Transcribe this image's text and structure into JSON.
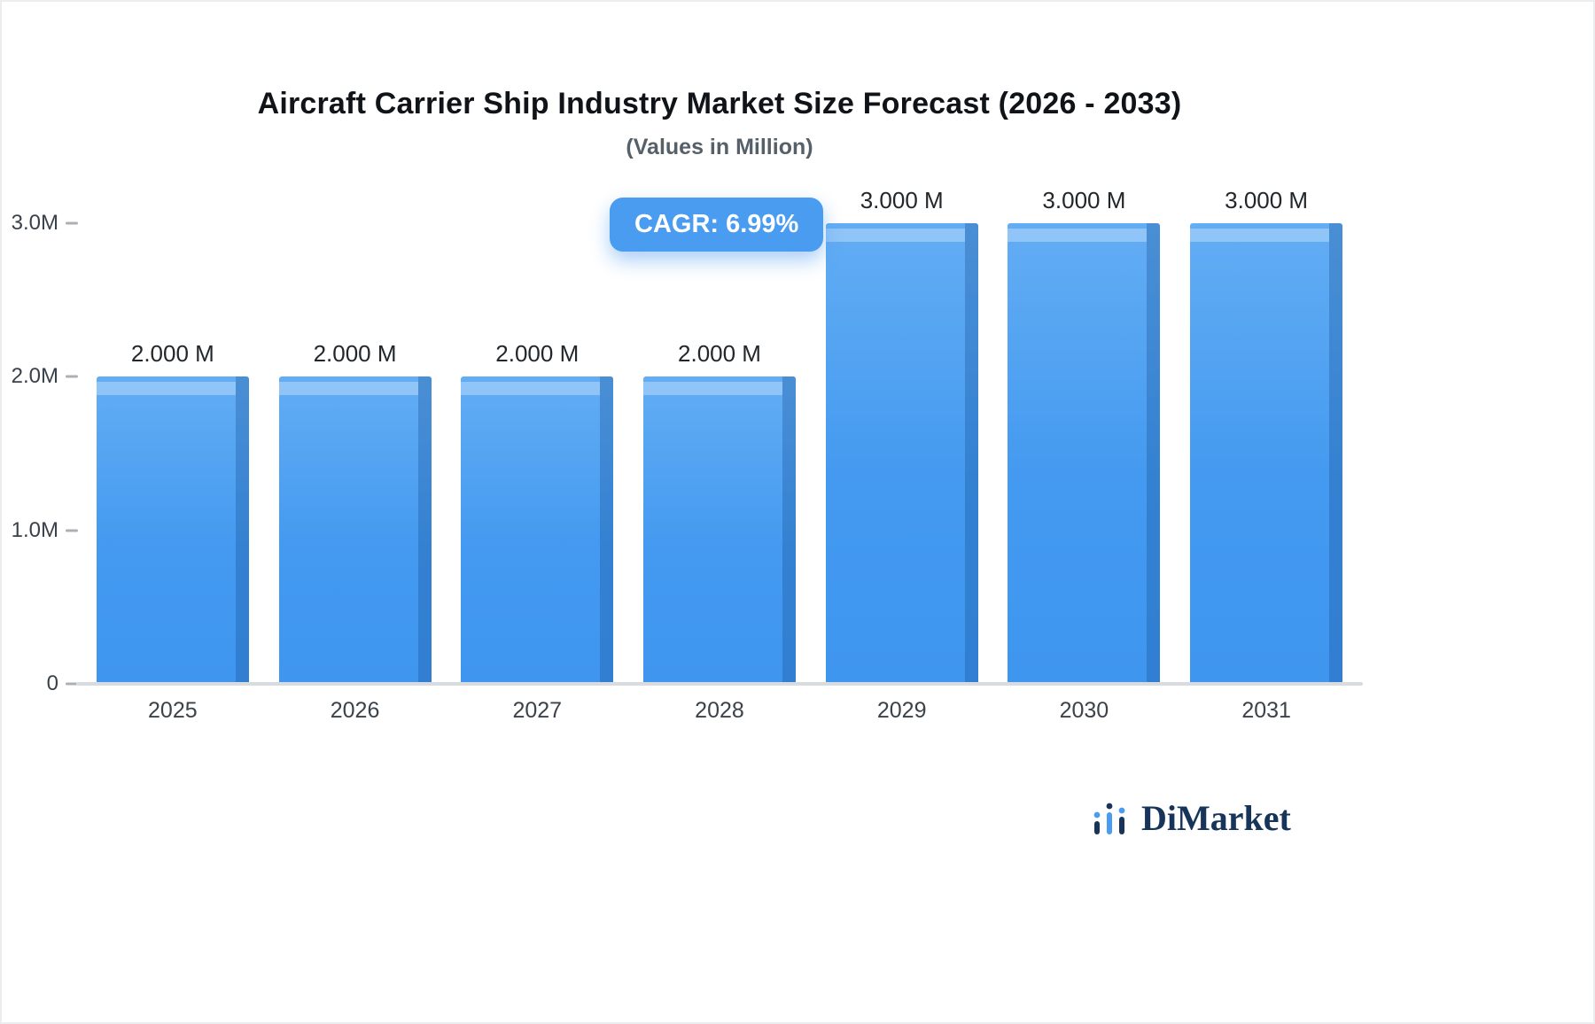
{
  "chart_data": {
    "type": "bar",
    "title": "Aircraft Carrier Ship Industry Market Size Forecast (2026 - 2033)",
    "subtitle": "(Values in Million)",
    "categories": [
      "2025",
      "2026",
      "2027",
      "2028",
      "2029",
      "2030",
      "2031"
    ],
    "values": [
      2.0,
      2.0,
      2.0,
      2.0,
      3.0,
      3.0,
      3.0
    ],
    "value_labels": [
      "2.000 M",
      "2.000 M",
      "2.000 M",
      "2.000 M",
      "3.000 M",
      "3.000 M",
      "3.000 M"
    ],
    "xlabel": "",
    "ylabel": "",
    "ylim": [
      0,
      3.0
    ],
    "yticks": [
      {
        "value": 0,
        "label": "0"
      },
      {
        "value": 1.0,
        "label": "1.0M"
      },
      {
        "value": 2.0,
        "label": "2.0M"
      },
      {
        "value": 3.0,
        "label": "3.0M"
      }
    ],
    "grid": false,
    "legend": "none",
    "bar_color": "#449af0",
    "bar_edge_color": "#2c77c4"
  },
  "badge": {
    "label": "CAGR: 6.99%"
  },
  "brand": {
    "name": "DiMarket"
  },
  "colors": {
    "accent": "#4a9cf1",
    "badge_bg": "#4a9cf1",
    "badge_text": "#ffffff",
    "title_text": "#101418",
    "subtitle_text": "#566069",
    "axis_text": "#3a4149",
    "logo_text": "#17345a"
  }
}
